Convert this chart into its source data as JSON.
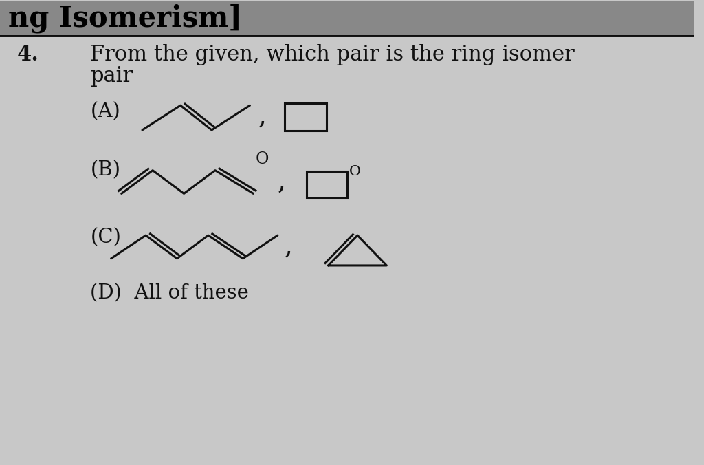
{
  "title": "ng Isomerism]",
  "question_num": "4.",
  "question_text": "From the given, which pair is the ring isomer",
  "question_text2": "pair",
  "bg_color": "#c8c8c8",
  "paper_color": "#dcdcdc",
  "text_color": "#111111",
  "options": [
    "(A)",
    "(B)",
    "(C)",
    "(D)  All of these"
  ],
  "title_fontsize": 30,
  "question_fontsize": 22,
  "option_fontsize": 21,
  "lw": 2.2
}
